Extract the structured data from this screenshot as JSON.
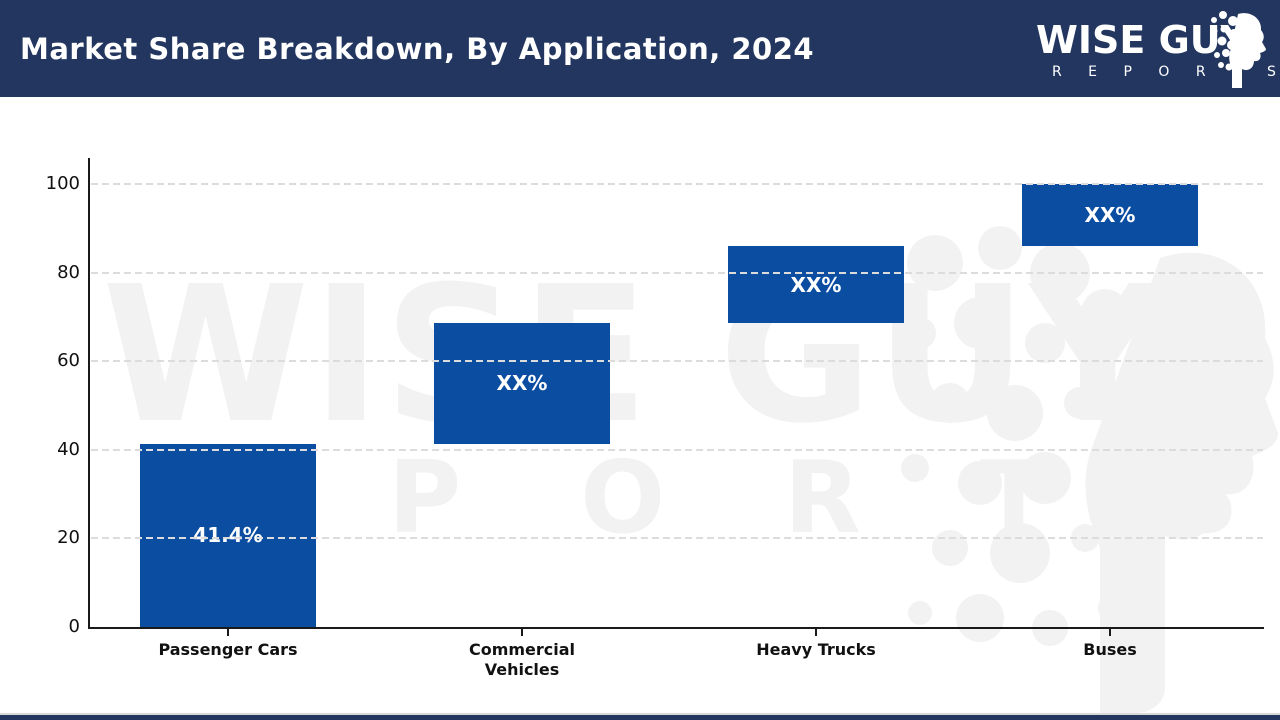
{
  "header": {
    "title": "Market Share Breakdown, By Application, 2024",
    "logo": {
      "name": "WISE GUY",
      "sub": "R E P O R T S"
    }
  },
  "watermark": {
    "line1": "WISE GUY",
    "line2": "P O R T S"
  },
  "chart_data": {
    "type": "bar",
    "subtype": "stacked-waterfall",
    "title": "Market Share Breakdown, By Application, 2024",
    "categories": [
      "Passenger Cars",
      "Commercial Vehicles",
      "Heavy Trucks",
      "Buses"
    ],
    "segments": [
      {
        "category": "Passenger Cars",
        "display": "Passenger Cars",
        "start": 0,
        "end": 41.4,
        "label": "41.4%"
      },
      {
        "category": "Commercial Vehicles",
        "display": "Commercial\nVehicles",
        "start": 41.4,
        "end": 68.6,
        "label": "XX%"
      },
      {
        "category": "Heavy Trucks",
        "display": "Heavy Trucks",
        "start": 68.6,
        "end": 86.0,
        "label": "XX%"
      },
      {
        "category": "Buses",
        "display": "Buses",
        "start": 86.0,
        "end": 100.0,
        "label": "XX%"
      }
    ],
    "yticks": [
      0,
      20,
      40,
      60,
      80,
      100
    ],
    "ylim": [
      0,
      100
    ],
    "xlabel": "",
    "ylabel": "",
    "grid": "horizontal-dashed",
    "legend": "none",
    "bar_color": "#0b4da1",
    "bar_label_color": "#ffffff"
  },
  "colors": {
    "header_bg": "#223660",
    "bar": "#0b4da1",
    "axis": "#1a1a1a",
    "gridline": "#dcdcdc",
    "watermark": "#f2f2f2",
    "title_text": "#ffffff"
  }
}
